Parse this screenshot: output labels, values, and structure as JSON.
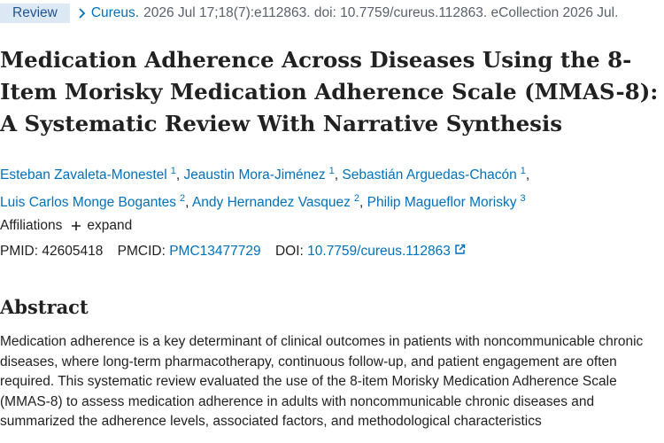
{
  "header": {
    "type": "Review",
    "journal": "Cureus.",
    "citation": "2026 Jul 17;18(7):e112863. doi: 10.7759/cureus.112863. eCollection 2026 Jul."
  },
  "title": "Medication Adherence Across Diseases Using the 8-Item Morisky Medication Adherence Scale (MMAS-8): A Systematic Review With Narrative Synthesis",
  "authors": {
    "separator": ",",
    "list": [
      {
        "name": "Esteban Zavaleta-Monestel",
        "aff": "1"
      },
      {
        "name": "Jeaustin Mora-Jiménez",
        "aff": "1"
      },
      {
        "name": "Sebastián Arguedas-Chacón",
        "aff": "1"
      },
      {
        "name": "Luis Carlos Monge Bogantes",
        "aff": "2"
      },
      {
        "name": "Andy Hernandez Vasquez",
        "aff": "2"
      },
      {
        "name": "Philip Magueflor Morisky",
        "aff": "3"
      }
    ]
  },
  "affiliations": {
    "label": "Affiliations",
    "toggle": "expand"
  },
  "ids": {
    "pmid_label": "PMID:",
    "pmid": "42605418",
    "pmcid_label": "PMCID:",
    "pmcid": "PMC13477729",
    "doi_label": "DOI:",
    "doi": "10.7759/cureus.112863"
  },
  "abstract": {
    "heading": "Abstract",
    "text": "Medication adherence is a key determinant of clinical outcomes in patients with noncommunicable chronic diseases, where long-term pharmacotherapy, continuous follow-up, and patient engagement are often required. This systematic review evaluated the use of the 8-item Morisky Medication Adherence Scale (MMAS-8) to assess medication adherence in adults with noncommunicable chronic diseases and summarized the adherence levels, associated factors, and methodological characteristics"
  }
}
